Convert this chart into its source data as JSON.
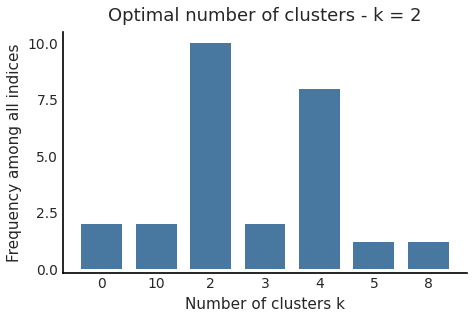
{
  "title": "Optimal number of clusters - k = 2",
  "xlabel": "Number of clusters k",
  "ylabel": "Frequency among all indices",
  "categories": [
    "0",
    "10",
    "2",
    "3",
    "4",
    "5",
    "8"
  ],
  "values": [
    2.0,
    2.0,
    10.0,
    2.0,
    8.0,
    1.2,
    1.2
  ],
  "bar_color": "#4878a0",
  "ylim": [
    -0.15,
    10.5
  ],
  "yticks": [
    0.0,
    2.5,
    5.0,
    7.5,
    10.0
  ],
  "background_color": "#ffffff",
  "title_fontsize": 13,
  "label_fontsize": 11,
  "tick_fontsize": 10,
  "bar_width": 0.75,
  "figsize": [
    4.74,
    3.19
  ],
  "dpi": 100
}
